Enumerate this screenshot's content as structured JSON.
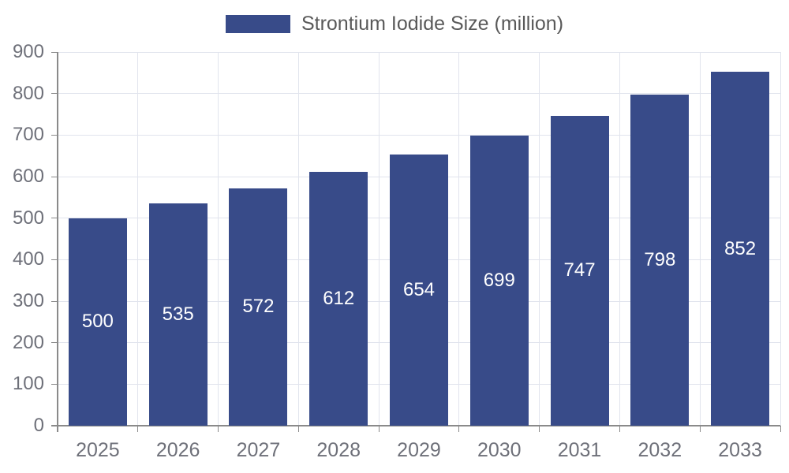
{
  "chart_data": {
    "type": "bar",
    "title": "",
    "legend": "Strontium Iodide Size (million)",
    "legend_position": "top-center",
    "categories": [
      "2025",
      "2026",
      "2027",
      "2028",
      "2029",
      "2030",
      "2031",
      "2032",
      "2033"
    ],
    "values": [
      500,
      535,
      572,
      612,
      654,
      699,
      747,
      798,
      852
    ],
    "xlabel": "",
    "ylabel": "",
    "ylim": [
      0,
      900
    ],
    "ytick_step": 100,
    "grid": true,
    "value_labels": "inside-center",
    "colors": {
      "bar": "#384B89",
      "bar_value_text": "#ffffff",
      "axis": "#8a8a8a",
      "gridline": "#e1e4ed",
      "tick_label": "#6E7079",
      "legend_text": "#595959"
    }
  }
}
